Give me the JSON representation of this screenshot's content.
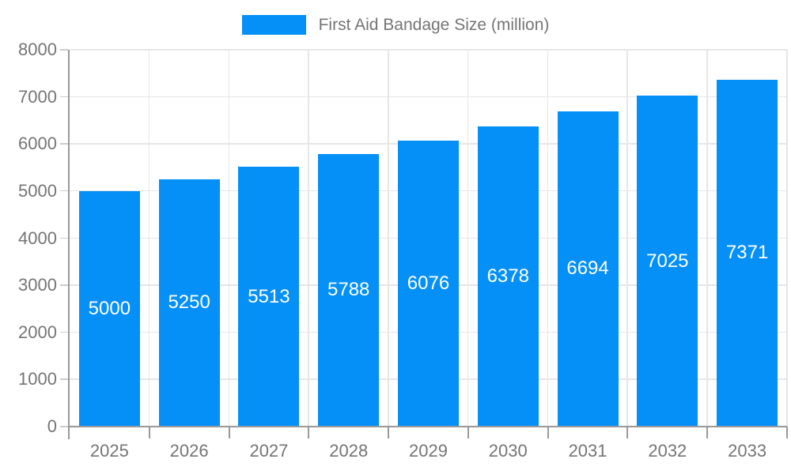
{
  "chart_data": {
    "type": "bar",
    "title": "",
    "series_name": "First Aid Bandage Size (million)",
    "categories": [
      "2025",
      "2026",
      "2027",
      "2028",
      "2029",
      "2030",
      "2031",
      "2032",
      "2033"
    ],
    "values": [
      5000,
      5250,
      5513,
      5788,
      6076,
      6378,
      6694,
      7025,
      7371
    ],
    "xlabel": "",
    "ylabel": "",
    "ylim": [
      0,
      8000
    ],
    "yticks": [
      0,
      1000,
      2000,
      3000,
      4000,
      5000,
      6000,
      7000,
      8000
    ],
    "grid": true,
    "legend_position": "top-center",
    "data_labels": "inside-center"
  },
  "colors": {
    "bar": "#0590F8",
    "axis_line": "#999999",
    "gridline": "#E6E6E6",
    "y_tick": "#CCCCCC",
    "x_tick": "#999999",
    "label_text": "#757575",
    "bar_label_text": "#FFFFFF",
    "background": "#FFFFFF"
  }
}
